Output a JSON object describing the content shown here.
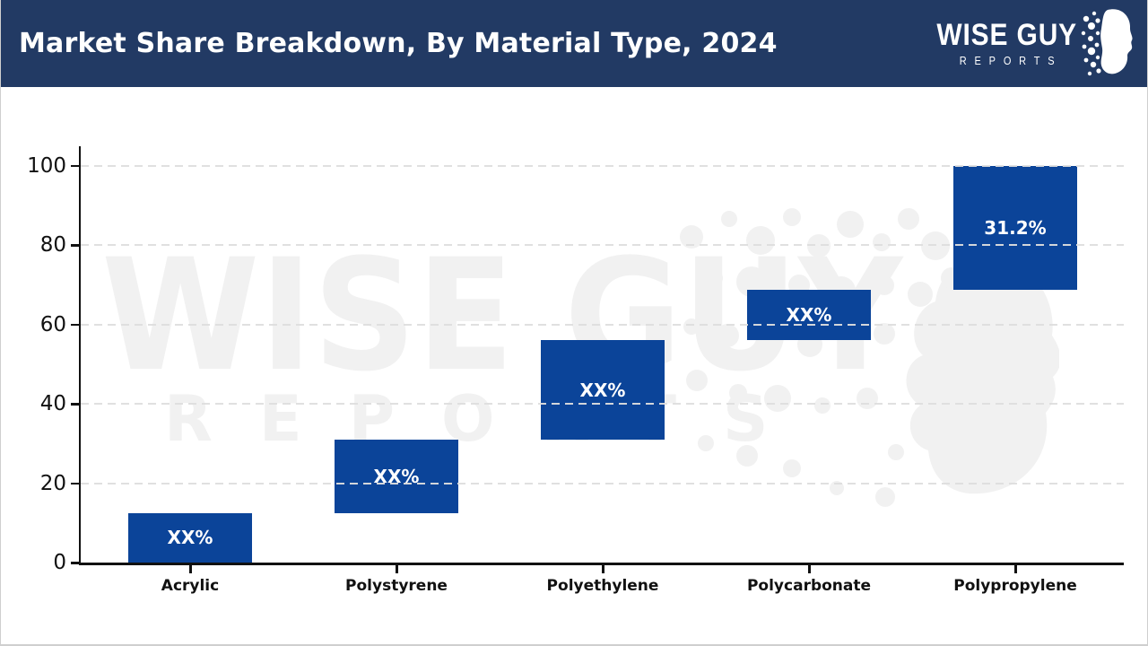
{
  "header": {
    "title": "Market Share Breakdown, By Material Type, 2024",
    "bg_color": "#223a64",
    "logo": {
      "line1": "WISE GUY",
      "line2": "REPORTS"
    }
  },
  "watermark": {
    "line1": "WISE GUY",
    "line2": "REPORTS",
    "color": "#f1f1f1"
  },
  "chart_data": {
    "type": "bar",
    "subtype": "floating-waterfall",
    "title": "Market Share Breakdown, By Material Type, 2024",
    "categories": [
      "Acrylic",
      "Polystyrene",
      "Polyethylene",
      "Polycarbonate",
      "Polypropylene"
    ],
    "segments": [
      {
        "category": "Acrylic",
        "start": 0,
        "end": 12.5,
        "value": 12.5,
        "label": "XX%"
      },
      {
        "category": "Polystyrene",
        "start": 12.5,
        "end": 31.0,
        "value": 18.5,
        "label": "XX%"
      },
      {
        "category": "Polyethylene",
        "start": 31.0,
        "end": 56.0,
        "value": 25.0,
        "label": "XX%"
      },
      {
        "category": "Polycarbonate",
        "start": 56.0,
        "end": 68.8,
        "value": 12.8,
        "label": "XX%"
      },
      {
        "category": "Polypropylene",
        "start": 68.8,
        "end": 100.0,
        "value": 31.2,
        "label": "31.2%"
      }
    ],
    "xlabel": "",
    "ylabel": "",
    "ylim": [
      0,
      100
    ],
    "yticks": [
      0,
      20,
      40,
      60,
      80,
      100
    ],
    "grid": "horizontal-dashed",
    "grid_above_bars": true,
    "legend": "none",
    "bar_color": "#0b4499",
    "bar_label_color": "#ffffff"
  }
}
